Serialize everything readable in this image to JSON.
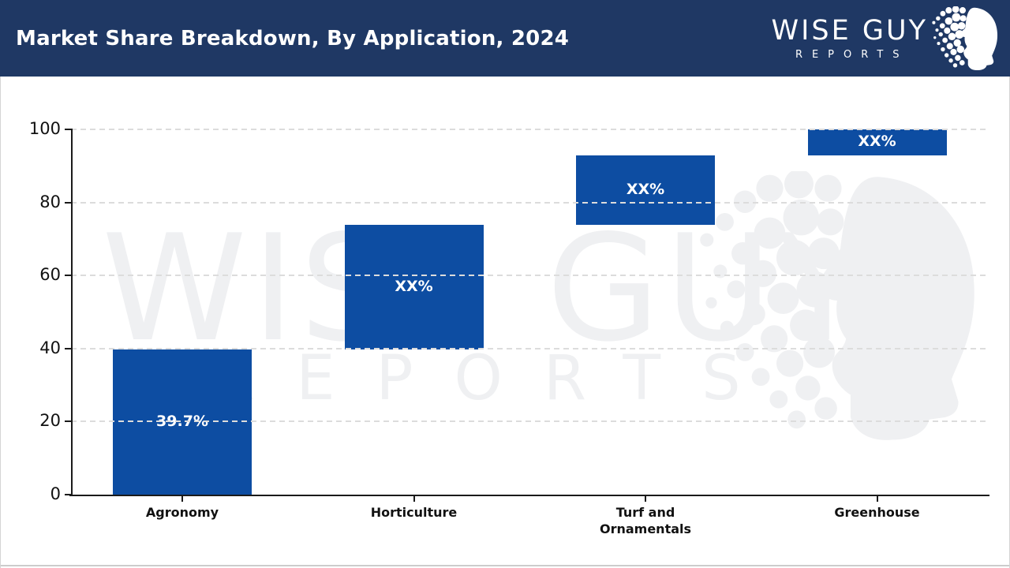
{
  "header": {
    "title": "Market Share Breakdown, By Application, 2024",
    "logo": {
      "line1": "WISE GUY",
      "line2": "REPORTS"
    }
  },
  "watermark": {
    "line1": "WISE GUY",
    "line2": "REPORTS"
  },
  "colors": {
    "header_bg": "#1f3864",
    "bar_fill": "#0d4da2",
    "bar_label_text": "#ffffff",
    "watermark": "#eff0f2",
    "gridline": "#dcdcdc",
    "axis": "#1a1a1a"
  },
  "chart_data": {
    "type": "bar",
    "subtype": "waterfall",
    "title": "Market Share Breakdown, By Application, 2024",
    "categories": [
      "Agronomy",
      "Horticulture",
      "Turf and\nOrnamentals",
      "Greenhouse"
    ],
    "segments": [
      {
        "category": "Agronomy",
        "start": 0,
        "end": 39.7,
        "value": 39.7,
        "label": "39.7%"
      },
      {
        "category": "Horticulture",
        "start": 39.7,
        "end": 73.8,
        "value": 34.1,
        "label": "XX%"
      },
      {
        "category": "Turf and Ornamentals",
        "start": 73.8,
        "end": 92.9,
        "value": 19.1,
        "label": "XX%"
      },
      {
        "category": "Greenhouse",
        "start": 92.9,
        "end": 100,
        "value": 7.1,
        "label": "XX%"
      }
    ],
    "xlabel": "",
    "ylabel": "",
    "ylim": [
      0,
      100
    ],
    "yticks": [
      0,
      20,
      40,
      60,
      80,
      100
    ],
    "grid": "horizontal-dashed-over-bars",
    "legend": null,
    "bar_color": "#0d4da2",
    "label_color_on_bar": "#ffffff"
  }
}
